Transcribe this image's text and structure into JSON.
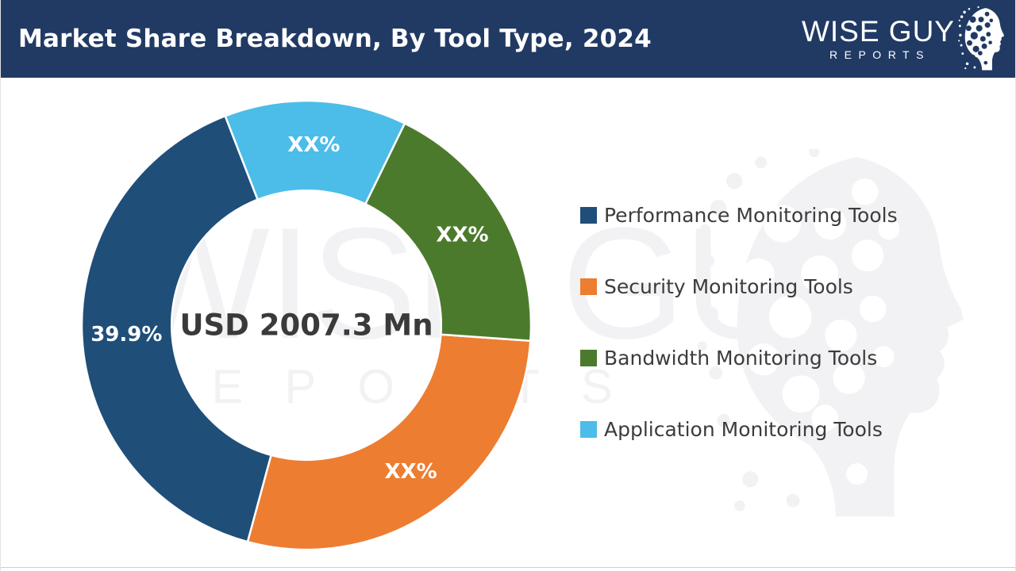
{
  "logo": {
    "name": "WISE GUY",
    "tagline": "REPORTS"
  },
  "chart_data": {
    "type": "pie",
    "subtype": "donut",
    "title": "Market Share Breakdown, By Tool Type, 2024",
    "center_label": "USD 2007.3 Mn",
    "categories": [
      "Performance Monitoring Tools",
      "Security Monitoring Tools",
      "Bandwidth Monitoring Tools",
      "Application Monitoring Tools"
    ],
    "values_pct": [
      39.9,
      28.1,
      18.9,
      13.1
    ],
    "value_labels": [
      "39.9%",
      "XX%",
      "XX%",
      "XX%"
    ],
    "colors": [
      "#1F4E79",
      "#ED7D31",
      "#4C7A2D",
      "#4BBDE8"
    ],
    "start_angle_deg": -21.2,
    "direction": "counterclockwise",
    "hole_ratio": 0.6,
    "legend_position": "right",
    "separator_color": "#FFFFFF",
    "label_color": "#FFFFFF",
    "header_background": "#213A64",
    "watermark_color": "#F2F2F5"
  }
}
